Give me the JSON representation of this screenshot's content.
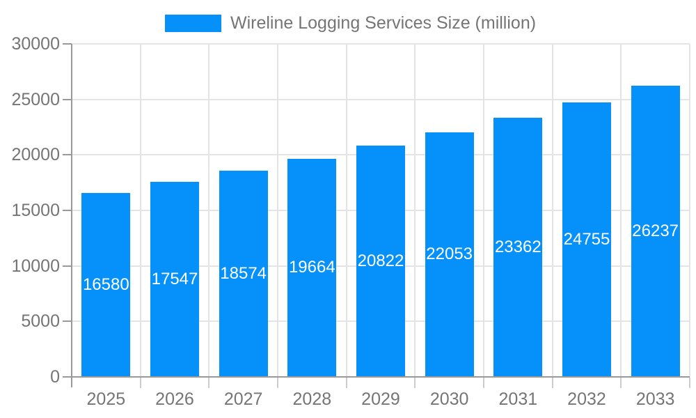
{
  "legend": {
    "label": "Wireline Logging Services Size (million)"
  },
  "colors": {
    "bar": "#0590FA",
    "grid": "#e4e4e4",
    "axis": "#999999",
    "minor_tick": "#cccccc",
    "text": "#757575",
    "bar_label": "#ffffff",
    "background": "#ffffff"
  },
  "chart_data": {
    "type": "bar",
    "title": "Wireline Logging Services Size (million)",
    "categories": [
      "2025",
      "2026",
      "2027",
      "2028",
      "2029",
      "2030",
      "2031",
      "2032",
      "2033"
    ],
    "values": [
      16580,
      17547,
      18574,
      19664,
      20822,
      22053,
      23362,
      24755,
      26237
    ],
    "series": [
      {
        "name": "Wireline Logging Services Size (million)",
        "values": [
          16580,
          17547,
          18574,
          19664,
          20822,
          22053,
          23362,
          24755,
          26237
        ]
      }
    ],
    "xlabel": "",
    "ylabel": "",
    "ylim": [
      0,
      30000
    ],
    "yticks": [
      0,
      5000,
      10000,
      15000,
      20000,
      25000,
      30000
    ],
    "grid": "horizontal-and-vertical",
    "legend_position": "top",
    "bar_labels": "values shown in white inside each bar, vertically centered"
  }
}
